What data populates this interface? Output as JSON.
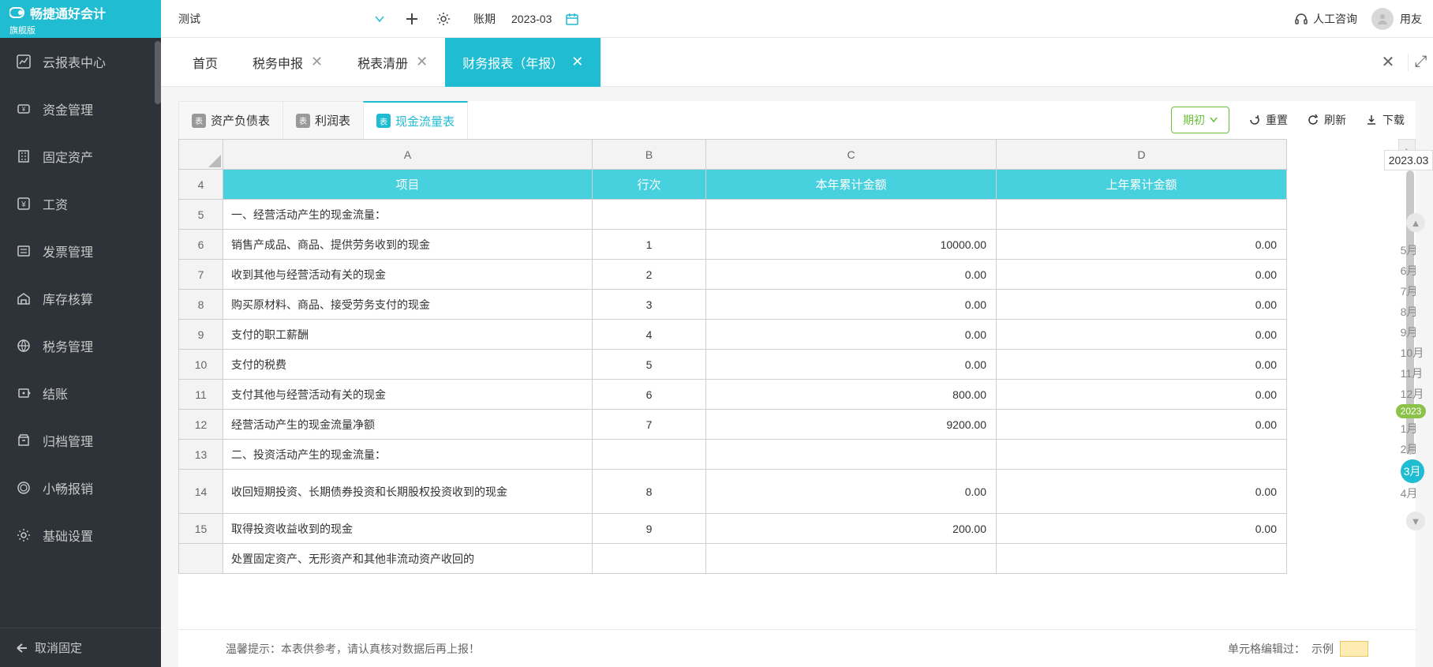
{
  "app": {
    "name": "畅捷通好会计",
    "edition": "旗舰版"
  },
  "topbar": {
    "account": "测试",
    "period_label": "账期",
    "period_value": "2023-03",
    "consult": "人工咨询",
    "user": "用友"
  },
  "tabs": [
    {
      "label": "首页",
      "closable": false,
      "active": false
    },
    {
      "label": "税务申报",
      "closable": true,
      "active": false
    },
    {
      "label": "税表清册",
      "closable": true,
      "active": false
    },
    {
      "label": "财务报表（年报）",
      "closable": true,
      "active": true
    }
  ],
  "subtabs": [
    {
      "label": "资产负债表",
      "active": false
    },
    {
      "label": "利润表",
      "active": false
    },
    {
      "label": "现金流量表",
      "active": true
    }
  ],
  "toolbar": {
    "period_btn": "期初",
    "reset": "重置",
    "refresh": "刷新",
    "download": "下载"
  },
  "sheet": {
    "col_letters": [
      "A",
      "B",
      "C",
      "D"
    ],
    "headers": [
      "项目",
      "行次",
      "本年累计金额",
      "上年累计金额"
    ],
    "header_rownum": "4",
    "rows": [
      {
        "num": "5",
        "a": "一、经营活动产生的现金流量：",
        "b": "",
        "c": "",
        "d": ""
      },
      {
        "num": "6",
        "a": "销售产成品、商品、提供劳务收到的现金",
        "b": "1",
        "c": "10000.00",
        "d": "0.00"
      },
      {
        "num": "7",
        "a": "收到其他与经营活动有关的现金",
        "b": "2",
        "c": "0.00",
        "d": "0.00"
      },
      {
        "num": "8",
        "a": "购买原材料、商品、接受劳务支付的现金",
        "b": "3",
        "c": "0.00",
        "d": "0.00"
      },
      {
        "num": "9",
        "a": "支付的职工薪酬",
        "b": "4",
        "c": "0.00",
        "d": "0.00"
      },
      {
        "num": "10",
        "a": "支付的税费",
        "b": "5",
        "c": "0.00",
        "d": "0.00"
      },
      {
        "num": "11",
        "a": "支付其他与经营活动有关的现金",
        "b": "6",
        "c": "800.00",
        "d": "0.00"
      },
      {
        "num": "12",
        "a": "经营活动产生的现金流量净额",
        "b": "7",
        "c": "9200.00",
        "d": "0.00"
      },
      {
        "num": "13",
        "a": "二、投资活动产生的现金流量：",
        "b": "",
        "c": "",
        "d": ""
      },
      {
        "num": "14",
        "a": "收回短期投资、长期债券投资和长期股权投资收到的现金",
        "b": "8",
        "c": "0.00",
        "d": "0.00"
      },
      {
        "num": "15",
        "a": "取得投资收益收到的现金",
        "b": "9",
        "c": "200.00",
        "d": "0.00"
      },
      {
        "num": "",
        "a": "处置固定资产、无形资产和其他非流动资产收回的",
        "b": "",
        "c": "",
        "d": ""
      }
    ]
  },
  "footer": {
    "tip": "温馨提示：本表供参考，请认真核对数据后再上报！",
    "edited_label": "单元格编辑过：",
    "example": "示例"
  },
  "sidebar": {
    "items": [
      {
        "label": "云报表中心",
        "icon": "chart"
      },
      {
        "label": "资金管理",
        "icon": "money"
      },
      {
        "label": "固定资产",
        "icon": "building"
      },
      {
        "label": "工资",
        "icon": "yen"
      },
      {
        "label": "发票管理",
        "icon": "receipt"
      },
      {
        "label": "库存核算",
        "icon": "warehouse"
      },
      {
        "label": "税务管理",
        "icon": "globe"
      },
      {
        "label": "结账",
        "icon": "lock"
      },
      {
        "label": "归档管理",
        "icon": "archive"
      },
      {
        "label": "小畅报销",
        "icon": "coin"
      },
      {
        "label": "基础设置",
        "icon": "gear"
      }
    ],
    "footer": "取消固定"
  },
  "rail": {
    "year_badge": "2023.03",
    "months_top": [
      "5月",
      "6月",
      "7月",
      "8月",
      "9月",
      "10月",
      "11月",
      "12月"
    ],
    "year_chip": "2023",
    "months_bottom": [
      "1月",
      "2月",
      "3月",
      "4月"
    ],
    "active": "3月"
  },
  "colors": {
    "primary": "#1fbcd2",
    "sidebar_bg": "#2d3338",
    "header_cell": "#47d0de",
    "green": "#67c23a"
  }
}
